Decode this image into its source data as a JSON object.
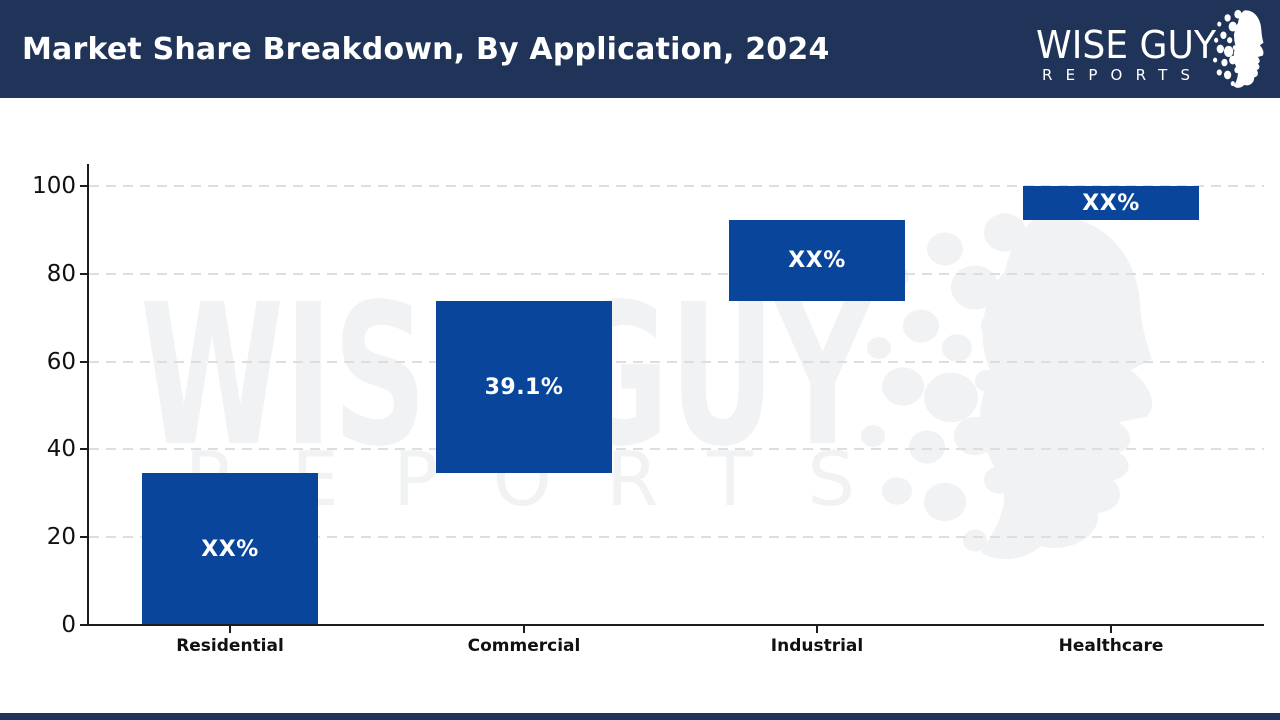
{
  "header": {
    "title": "Market Share Breakdown, By Application, 2024",
    "logo": {
      "line1": "WISE GUY",
      "line2": "REPORTS"
    }
  },
  "watermark": {
    "line1": "WISE GUY",
    "line2": "REPORTS"
  },
  "chart_data": {
    "type": "bar",
    "subtype": "waterfall",
    "title": "Market Share Breakdown, By Application, 2024",
    "categories": [
      "Residential",
      "Commercial",
      "Industrial",
      "Healthcare"
    ],
    "values": [
      34.6,
      39.1,
      18.5,
      7.8
    ],
    "cumulative_bottoms": [
      0,
      34.6,
      73.7,
      92.2
    ],
    "bar_labels": [
      "XX%",
      "39.1%",
      "XX%",
      "XX%"
    ],
    "unit": "%",
    "xlabel": "",
    "ylabel": "",
    "ylim": [
      0,
      105
    ],
    "yticks": [
      0,
      20,
      40,
      60,
      80,
      100
    ],
    "grid": "horizontal-dashed",
    "legend": "none"
  },
  "colors": {
    "header_bg": "#203459",
    "footer_bg": "#203459",
    "bar": "#09459B",
    "gridline": "#dedede",
    "watermark": "#f0f2f4",
    "axis": "#1c1c1c"
  }
}
